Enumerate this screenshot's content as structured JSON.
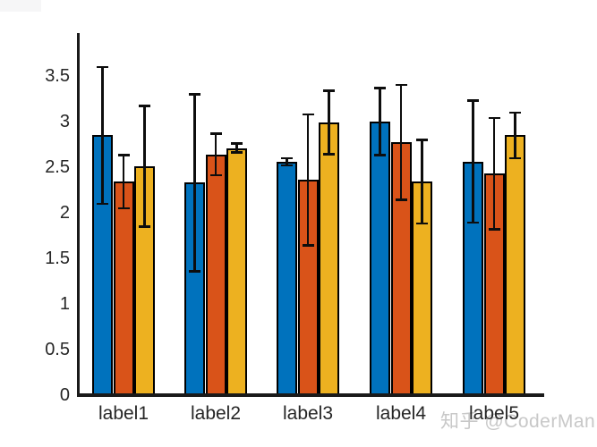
{
  "watermark": {
    "text": "知乎 @CoderMan",
    "color": "#c8c8c8"
  },
  "chart_data": {
    "type": "bar",
    "title": "",
    "xlabel": "",
    "ylabel": "",
    "categories": [
      "label1",
      "label2",
      "label3",
      "label4",
      "label5"
    ],
    "series": [
      {
        "name": "blue-series",
        "color": "#0072BD",
        "values": [
          2.85,
          2.33,
          2.56,
          3.0,
          2.56
        ],
        "errors": [
          0.75,
          0.97,
          0.04,
          0.37,
          0.67
        ]
      },
      {
        "name": "orange-series",
        "color": "#D95319",
        "values": [
          2.34,
          2.64,
          2.36,
          2.77,
          2.43
        ],
        "errors": [
          0.29,
          0.23,
          0.72,
          0.63,
          0.61
        ]
      },
      {
        "name": "yellow-series",
        "color": "#EDB120",
        "values": [
          2.51,
          2.71,
          2.99,
          2.34,
          2.85
        ],
        "errors": [
          0.66,
          0.05,
          0.35,
          0.46,
          0.25
        ]
      }
    ],
    "yticks": [
      0,
      0.5,
      1,
      1.5,
      2,
      2.5,
      3,
      3.5
    ],
    "ylim": [
      0,
      3.95
    ],
    "grid": false,
    "legend": false,
    "error_bars": true,
    "bar_outline_color": "#000000",
    "axis_color": "#1a1a1a",
    "tick_label_color": "#262626"
  }
}
